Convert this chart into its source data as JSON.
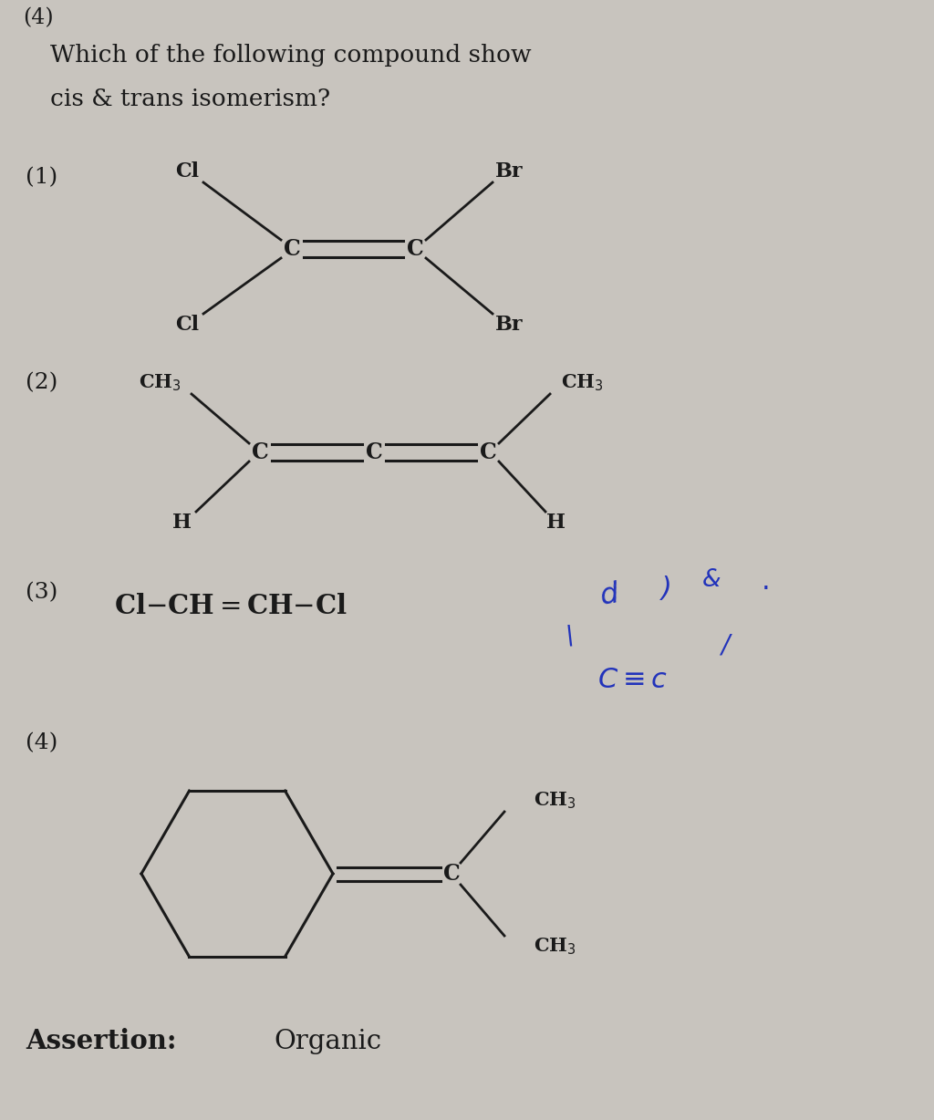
{
  "bg_color": "#c8c4be",
  "title_line1": "Which of the following compound show",
  "title_line2": "cis & trans isomerism?",
  "label1": "(1)",
  "label2": "(2)",
  "label3": "(3)",
  "label4": "(4)",
  "top_partial_label": "(4)",
  "assertion_text": "Assertion:",
  "assertion_text2": "Organic",
  "font_color": "#1a1a1a",
  "blue_color": "#2233bb",
  "font_size_title": 19,
  "font_size_label": 18,
  "font_size_struct": 17,
  "font_size_atom": 16
}
